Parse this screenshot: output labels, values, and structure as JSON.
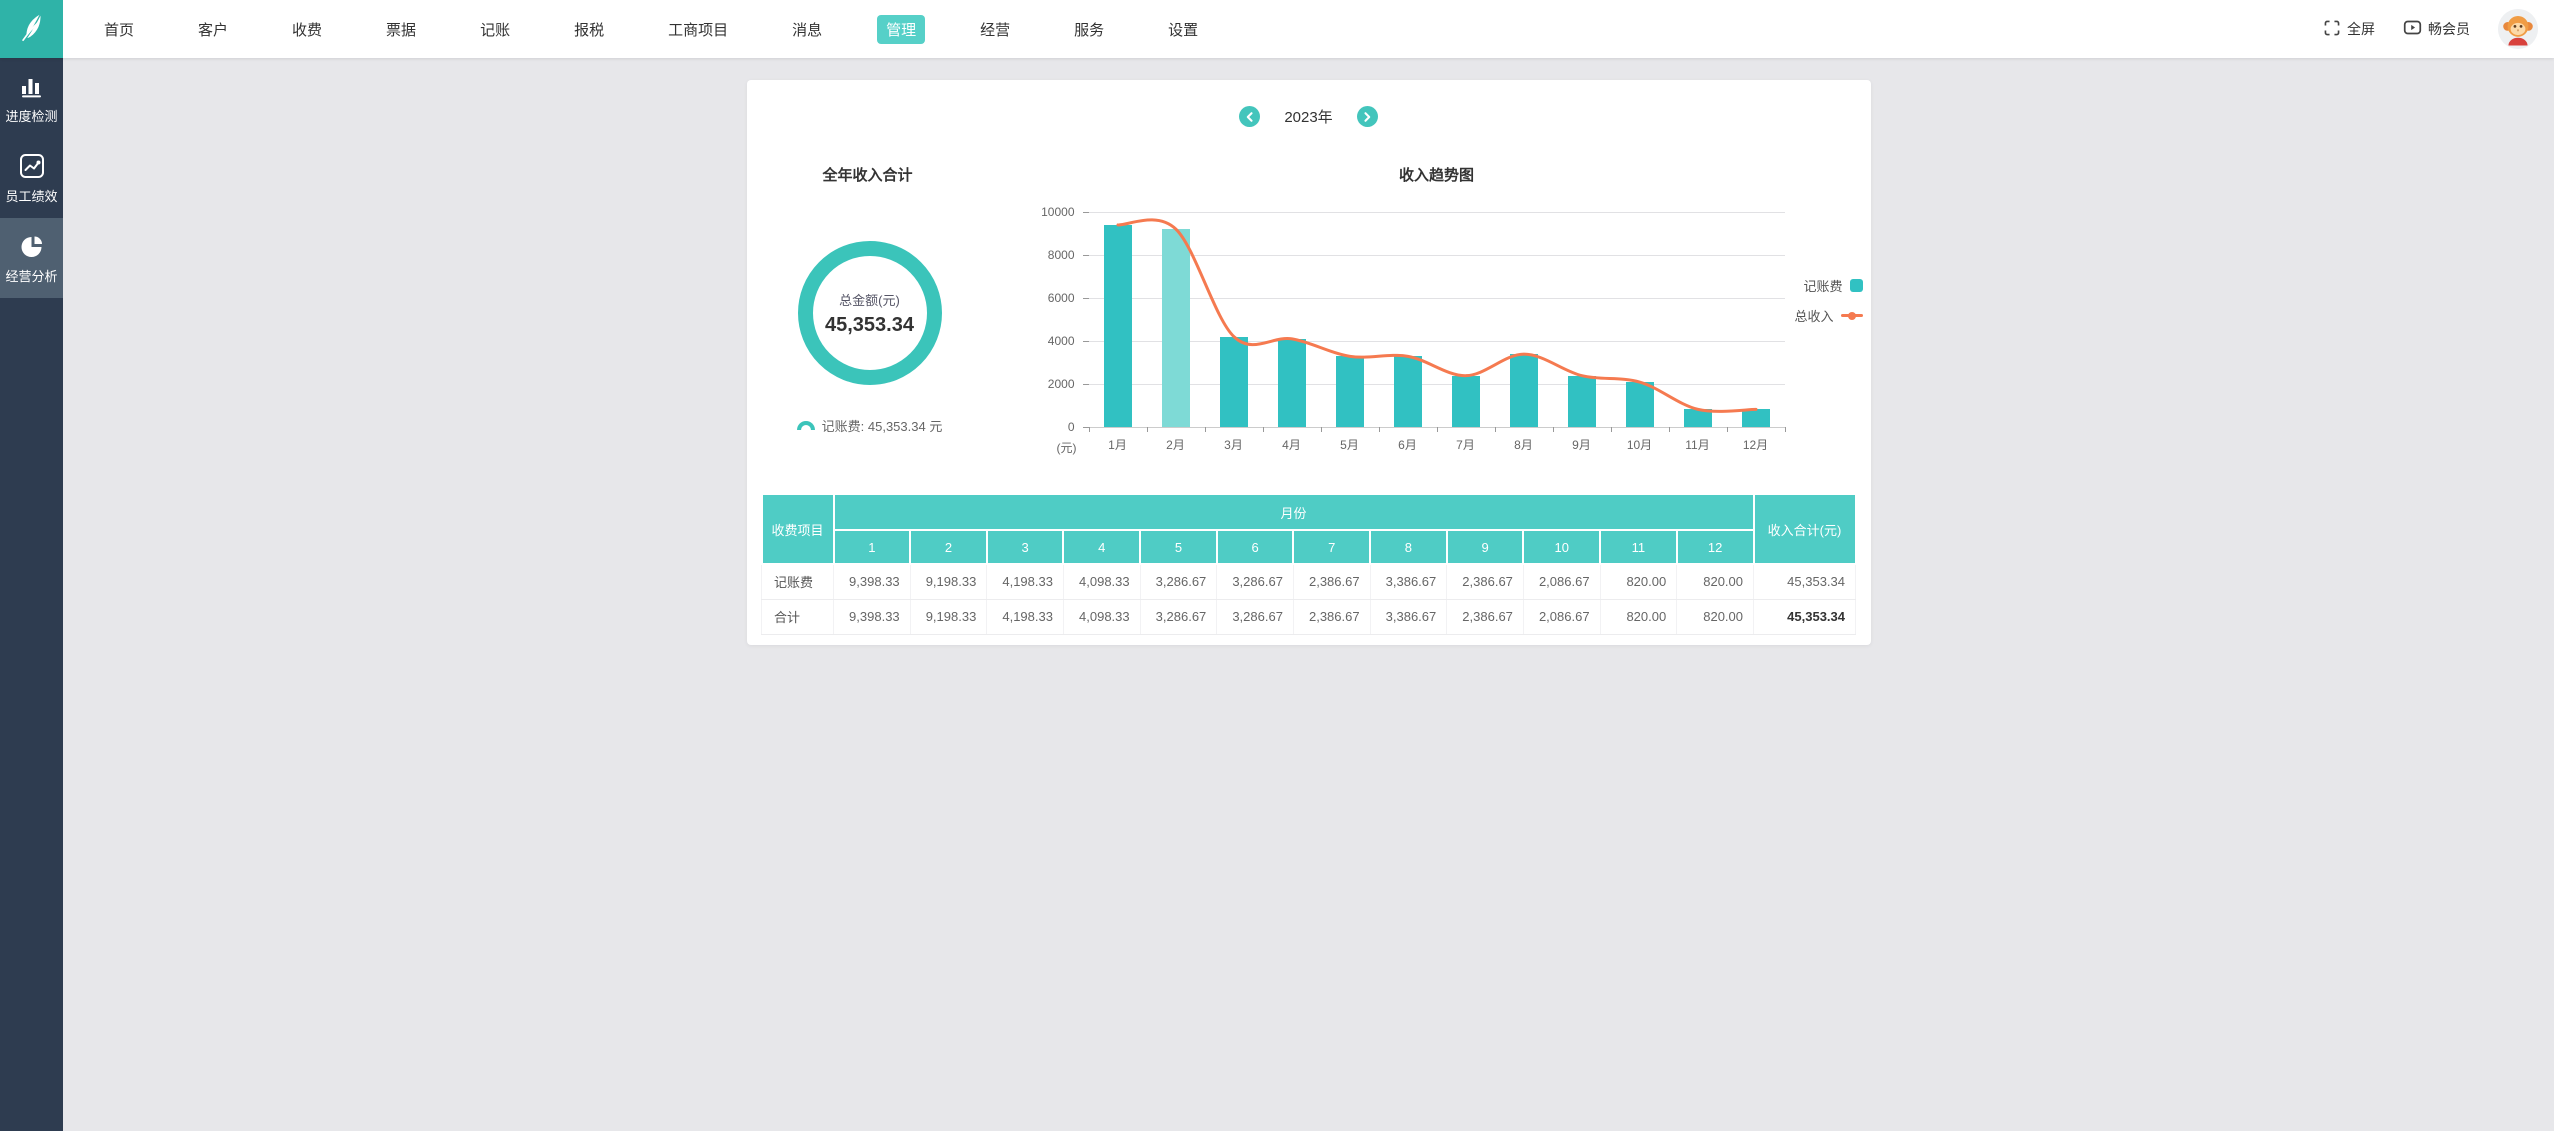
{
  "nav": {
    "items": [
      {
        "label": "首页",
        "active": false
      },
      {
        "label": "客户",
        "active": false
      },
      {
        "label": "收费",
        "active": false
      },
      {
        "label": "票据",
        "active": false
      },
      {
        "label": "记账",
        "active": false
      },
      {
        "label": "报税",
        "active": false
      },
      {
        "label": "工商项目",
        "active": false
      },
      {
        "label": "消息",
        "active": false
      },
      {
        "label": "管理",
        "active": true
      },
      {
        "label": "经营",
        "active": false
      },
      {
        "label": "服务",
        "active": false
      },
      {
        "label": "设置",
        "active": false
      }
    ],
    "fullscreen_label": "全屏",
    "member_label": "畅会员"
  },
  "sidebar": {
    "items": [
      {
        "label": "进度检测",
        "icon": "bar-chart-icon",
        "active": false
      },
      {
        "label": "员工绩效",
        "icon": "line-chart-icon",
        "active": false
      },
      {
        "label": "经营分析",
        "icon": "pie-chart-icon",
        "active": true
      }
    ]
  },
  "main": {
    "year": "2023年"
  },
  "chart_data": [
    {
      "type": "bar",
      "title": "收入趋势图",
      "categories": [
        "1月",
        "2月",
        "3月",
        "4月",
        "5月",
        "6月",
        "7月",
        "8月",
        "9月",
        "10月",
        "11月",
        "12月"
      ],
      "series": [
        {
          "name": "记账费",
          "type": "bar",
          "color": "#31c1c2",
          "highlight_color": "#7edad6",
          "highlight_index": 1,
          "values": [
            9398.33,
            9198.33,
            4198.33,
            4098.33,
            3286.67,
            3286.67,
            2386.67,
            3386.67,
            2386.67,
            2086.67,
            820.0,
            820.0
          ]
        },
        {
          "name": "总收入",
          "type": "line",
          "color": "#f57a50",
          "values": [
            9398.33,
            9198.33,
            4198.33,
            4098.33,
            3286.67,
            3286.67,
            2386.67,
            3386.67,
            2386.67,
            2086.67,
            820.0,
            820.0
          ]
        }
      ],
      "ylim": [
        0,
        10000
      ],
      "yticks": [
        0,
        2000,
        4000,
        6000,
        8000,
        10000
      ],
      "y_unit": "(元)",
      "grid": true,
      "legend_position": "right"
    },
    {
      "type": "pie",
      "title": "全年收入合计",
      "slices": [
        {
          "label": "记账费",
          "value": 45353.34,
          "color": "#3bc4ba"
        }
      ],
      "center_label": "总金额(元)",
      "center_value": "45,353.34",
      "legend_text": "记账费: 45,353.34 元"
    }
  ],
  "table": {
    "item_header": "收费项目",
    "month_group_header": "月份",
    "total_header": "收入合计(元)",
    "month_columns": [
      "1",
      "2",
      "3",
      "4",
      "5",
      "6",
      "7",
      "8",
      "9",
      "10",
      "11",
      "12"
    ],
    "rows": [
      {
        "label": "记账费",
        "values": [
          "9,398.33",
          "9,198.33",
          "4,198.33",
          "4,098.33",
          "3,286.67",
          "3,286.67",
          "2,386.67",
          "3,386.67",
          "2,386.67",
          "2,086.67",
          "820.00",
          "820.00"
        ],
        "total": "45,353.34",
        "total_bold": false
      },
      {
        "label": "合计",
        "values": [
          "9,398.33",
          "9,198.33",
          "4,198.33",
          "4,098.33",
          "3,286.67",
          "3,286.67",
          "2,386.67",
          "3,386.67",
          "2,386.67",
          "2,086.67",
          "820.00",
          "820.00"
        ],
        "total": "45,353.34",
        "total_bold": true
      }
    ]
  },
  "colors": {
    "accent_teal": "#31c1c2",
    "line_orange": "#f57a50",
    "sidebar_bg": "#2e3c50",
    "page_bg": "#e7e7ea",
    "table_header": "#4fccc5"
  }
}
